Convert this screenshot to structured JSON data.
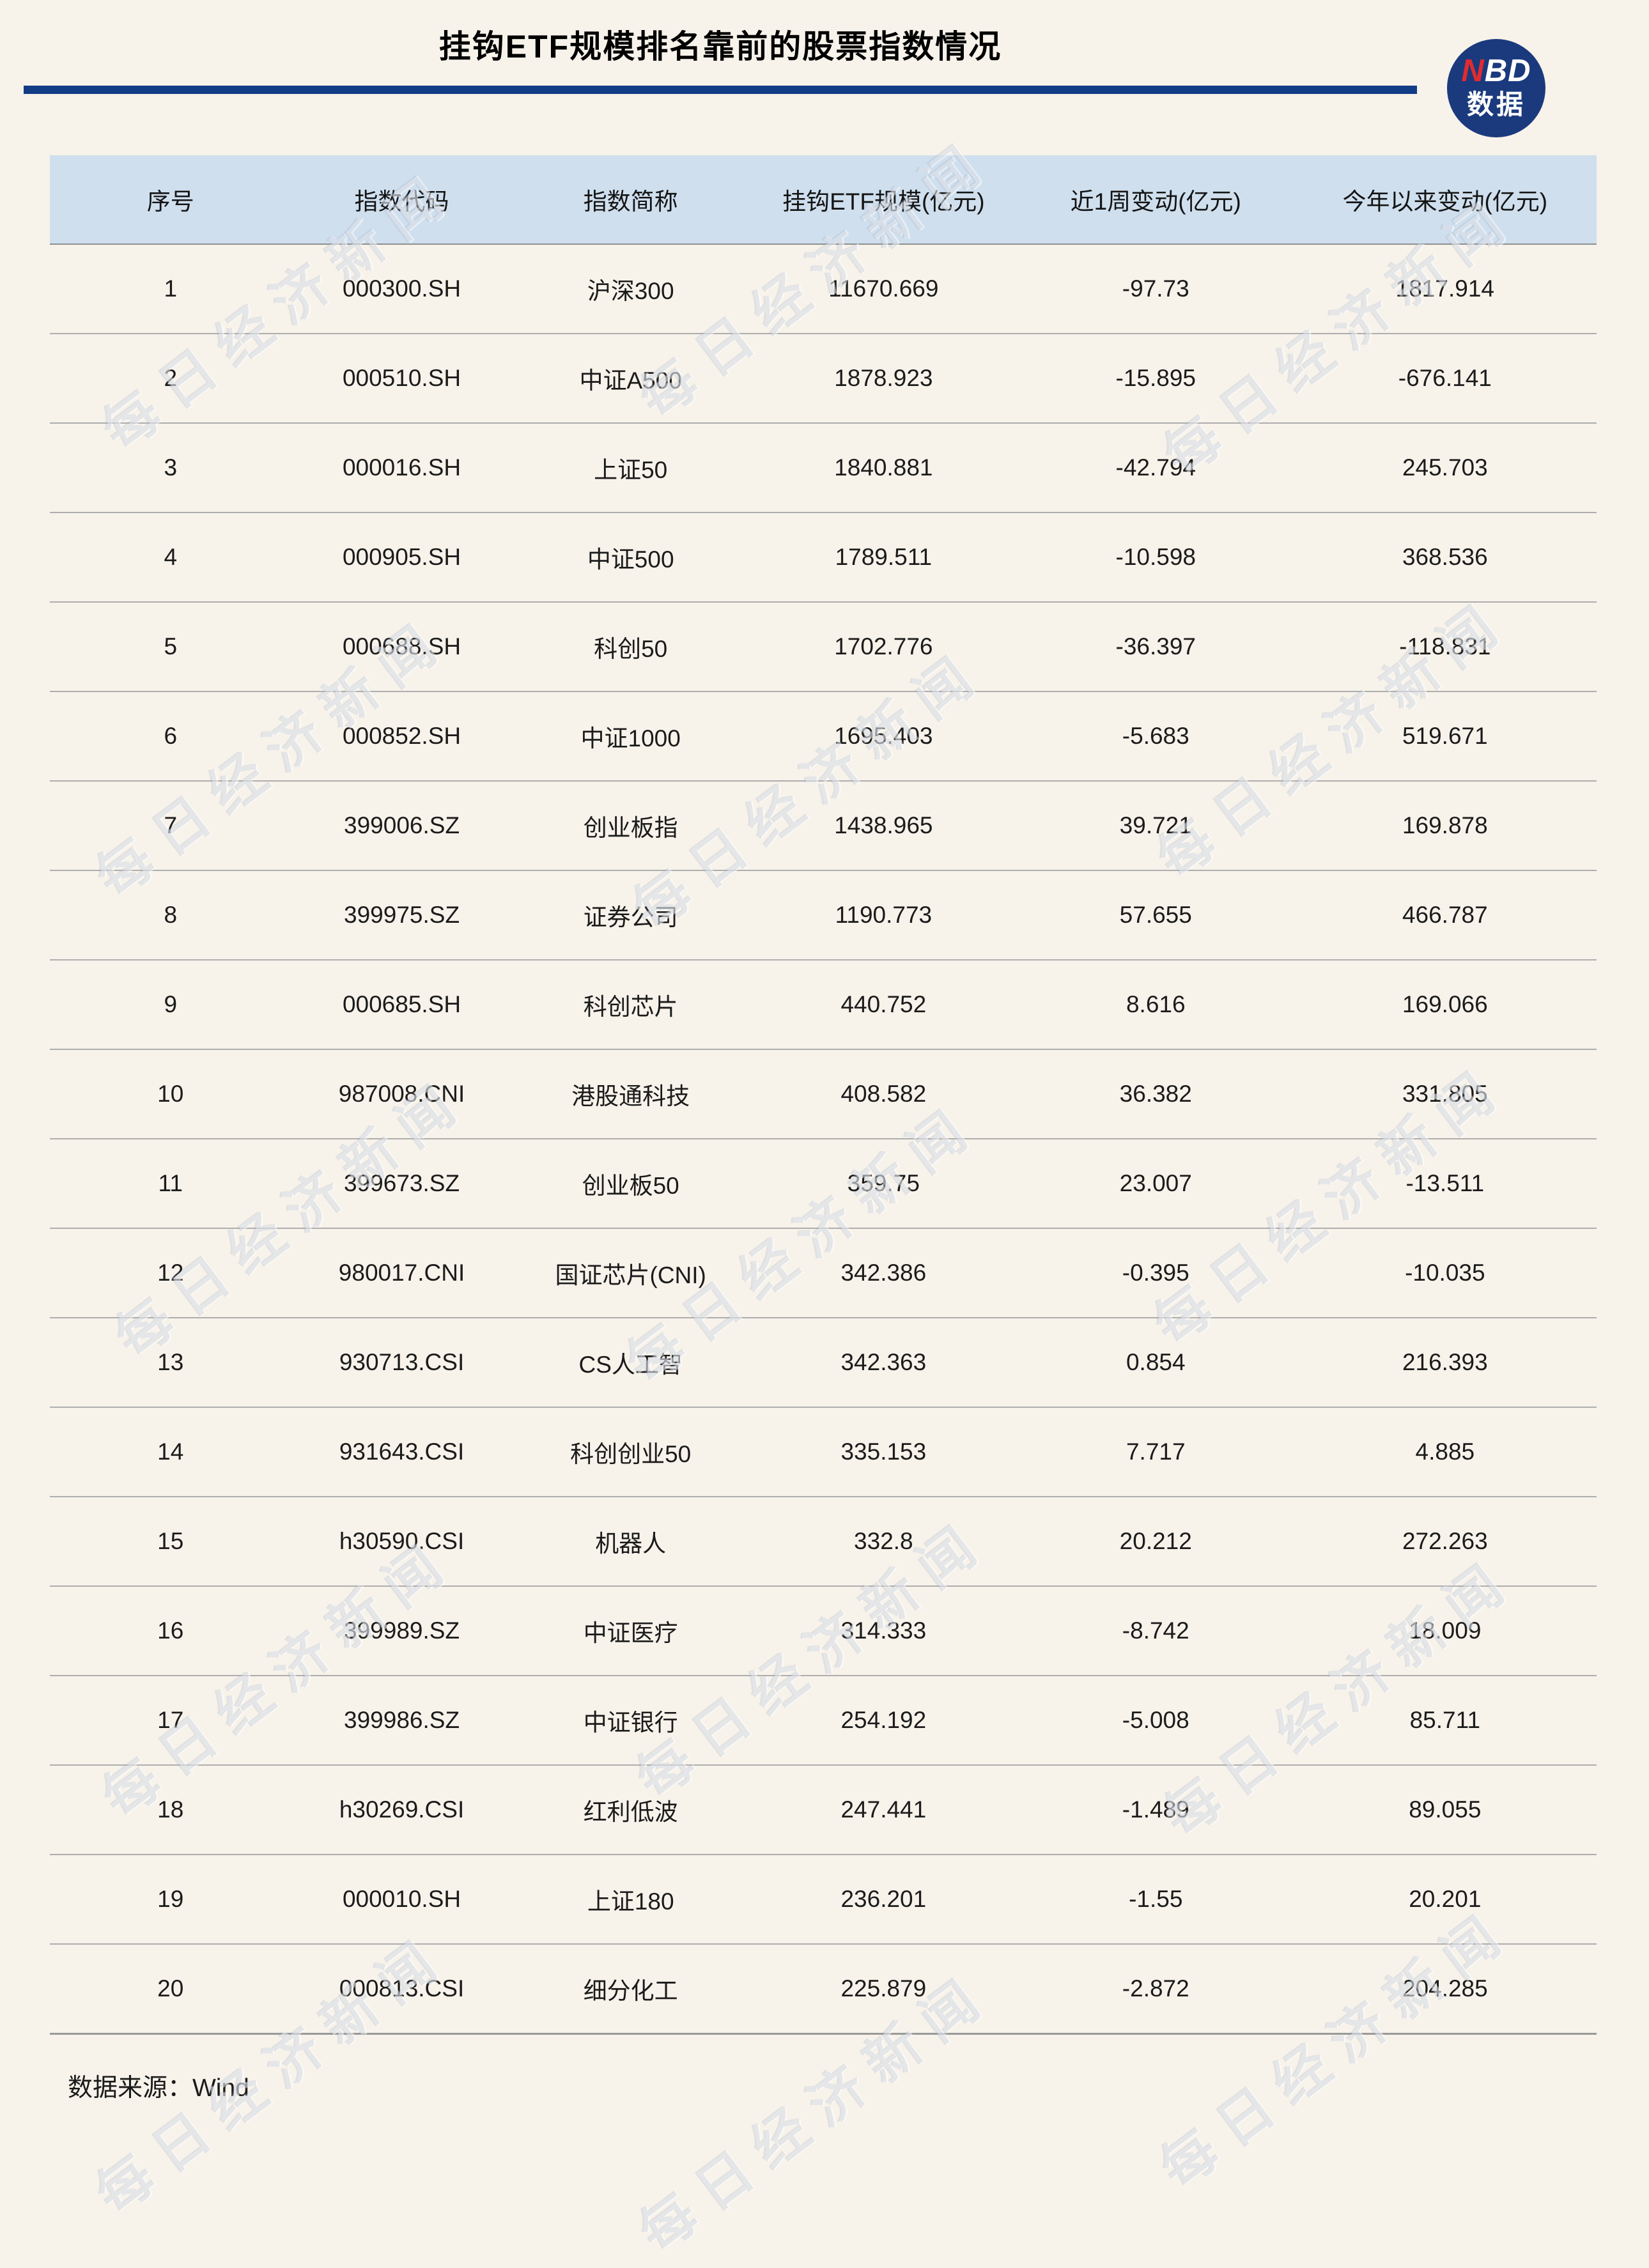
{
  "header": {
    "title": "挂钩ETF规模排名靠前的股票指数情况",
    "logo": {
      "n": "N",
      "bd": "BD",
      "line2": "数据"
    }
  },
  "watermark": {
    "text": "每日经济新闻"
  },
  "table": {
    "columns": [
      "序号",
      "指数代码",
      "指数简称",
      "挂钩ETF规模(亿元)",
      "近1周变动(亿元)",
      "今年以来变动(亿元)"
    ],
    "rows": [
      {
        "seq": "1",
        "code": "000300.SH",
        "name": "沪深300",
        "scale": "11670.669",
        "week": "-97.73",
        "ytd": "1817.914"
      },
      {
        "seq": "2",
        "code": "000510.SH",
        "name": "中证A500",
        "scale": "1878.923",
        "week": "-15.895",
        "ytd": "-676.141"
      },
      {
        "seq": "3",
        "code": "000016.SH",
        "name": "上证50",
        "scale": "1840.881",
        "week": "-42.794",
        "ytd": "245.703"
      },
      {
        "seq": "4",
        "code": "000905.SH",
        "name": "中证500",
        "scale": "1789.511",
        "week": "-10.598",
        "ytd": "368.536"
      },
      {
        "seq": "5",
        "code": "000688.SH",
        "name": "科创50",
        "scale": "1702.776",
        "week": "-36.397",
        "ytd": "-118.831"
      },
      {
        "seq": "6",
        "code": "000852.SH",
        "name": "中证1000",
        "scale": "1695.403",
        "week": "-5.683",
        "ytd": "519.671"
      },
      {
        "seq": "7",
        "code": "399006.SZ",
        "name": "创业板指",
        "scale": "1438.965",
        "week": "39.721",
        "ytd": "169.878"
      },
      {
        "seq": "8",
        "code": "399975.SZ",
        "name": "证券公司",
        "scale": "1190.773",
        "week": "57.655",
        "ytd": "466.787"
      },
      {
        "seq": "9",
        "code": "000685.SH",
        "name": "科创芯片",
        "scale": "440.752",
        "week": "8.616",
        "ytd": "169.066"
      },
      {
        "seq": "10",
        "code": "987008.CNI",
        "name": "港股通科技",
        "scale": "408.582",
        "week": "36.382",
        "ytd": "331.805"
      },
      {
        "seq": "11",
        "code": "399673.SZ",
        "name": "创业板50",
        "scale": "359.75",
        "week": "23.007",
        "ytd": "-13.511"
      },
      {
        "seq": "12",
        "code": "980017.CNI",
        "name": "国证芯片(CNI)",
        "scale": "342.386",
        "week": "-0.395",
        "ytd": "-10.035"
      },
      {
        "seq": "13",
        "code": "930713.CSI",
        "name": "CS人工智",
        "scale": "342.363",
        "week": "0.854",
        "ytd": "216.393"
      },
      {
        "seq": "14",
        "code": "931643.CSI",
        "name": "科创创业50",
        "scale": "335.153",
        "week": "7.717",
        "ytd": "4.885"
      },
      {
        "seq": "15",
        "code": "h30590.CSI",
        "name": "机器人",
        "scale": "332.8",
        "week": "20.212",
        "ytd": "272.263"
      },
      {
        "seq": "16",
        "code": "399989.SZ",
        "name": "中证医疗",
        "scale": "314.333",
        "week": "-8.742",
        "ytd": "18.009"
      },
      {
        "seq": "17",
        "code": "399986.SZ",
        "name": "中证银行",
        "scale": "254.192",
        "week": "-5.008",
        "ytd": "85.711"
      },
      {
        "seq": "18",
        "code": "h30269.CSI",
        "name": "红利低波",
        "scale": "247.441",
        "week": "-1.489",
        "ytd": "89.055"
      },
      {
        "seq": "19",
        "code": "000010.SH",
        "name": "上证180",
        "scale": "236.201",
        "week": "-1.55",
        "ytd": "20.201"
      },
      {
        "seq": "20",
        "code": "000813.CSI",
        "name": "细分化工",
        "scale": "225.879",
        "week": "-2.872",
        "ytd": "204.285"
      }
    ]
  },
  "footer": {
    "source": "数据来源：Wind"
  },
  "colors": {
    "navy": "#123c85",
    "logo_navy": "#1b3a7d",
    "logo_red": "#e02b30",
    "header_bg": "#cfdfee",
    "page_bg": "#f7f2ea",
    "row_line": "#aeaeae"
  },
  "chart_data": {
    "type": "table",
    "title": "挂钩ETF规模排名靠前的股票指数情况",
    "columns": [
      "序号",
      "指数代码",
      "指数简称",
      "挂钩ETF规模(亿元)",
      "近1周变动(亿元)",
      "今年以来变动(亿元)"
    ],
    "rows": [
      [
        1,
        "000300.SH",
        "沪深300",
        11670.669,
        -97.73,
        1817.914
      ],
      [
        2,
        "000510.SH",
        "中证A500",
        1878.923,
        -15.895,
        -676.141
      ],
      [
        3,
        "000016.SH",
        "上证50",
        1840.881,
        -42.794,
        245.703
      ],
      [
        4,
        "000905.SH",
        "中证500",
        1789.511,
        -10.598,
        368.536
      ],
      [
        5,
        "000688.SH",
        "科创50",
        1702.776,
        -36.397,
        -118.831
      ],
      [
        6,
        "000852.SH",
        "中证1000",
        1695.403,
        -5.683,
        519.671
      ],
      [
        7,
        "399006.SZ",
        "创业板指",
        1438.965,
        39.721,
        169.878
      ],
      [
        8,
        "399975.SZ",
        "证券公司",
        1190.773,
        57.655,
        466.787
      ],
      [
        9,
        "000685.SH",
        "科创芯片",
        440.752,
        8.616,
        169.066
      ],
      [
        10,
        "987008.CNI",
        "港股通科技",
        408.582,
        36.382,
        331.805
      ],
      [
        11,
        "399673.SZ",
        "创业板50",
        359.75,
        23.007,
        -13.511
      ],
      [
        12,
        "980017.CNI",
        "国证芯片(CNI)",
        342.386,
        -0.395,
        -10.035
      ],
      [
        13,
        "930713.CSI",
        "CS人工智",
        342.363,
        0.854,
        216.393
      ],
      [
        14,
        "931643.CSI",
        "科创创业50",
        335.153,
        7.717,
        4.885
      ],
      [
        15,
        "h30590.CSI",
        "机器人",
        332.8,
        20.212,
        272.263
      ],
      [
        16,
        "399989.SZ",
        "中证医疗",
        314.333,
        -8.742,
        18.009
      ],
      [
        17,
        "399986.SZ",
        "中证银行",
        254.192,
        -5.008,
        85.711
      ],
      [
        18,
        "h30269.CSI",
        "红利低波",
        247.441,
        -1.489,
        89.055
      ],
      [
        19,
        "000010.SH",
        "上证180",
        236.201,
        -1.55,
        20.201
      ],
      [
        20,
        "000813.CSI",
        "细分化工",
        225.879,
        -2.872,
        204.285
      ]
    ],
    "source": "Wind",
    "legend_position": "none",
    "grid": "horizontal-row-separators"
  }
}
